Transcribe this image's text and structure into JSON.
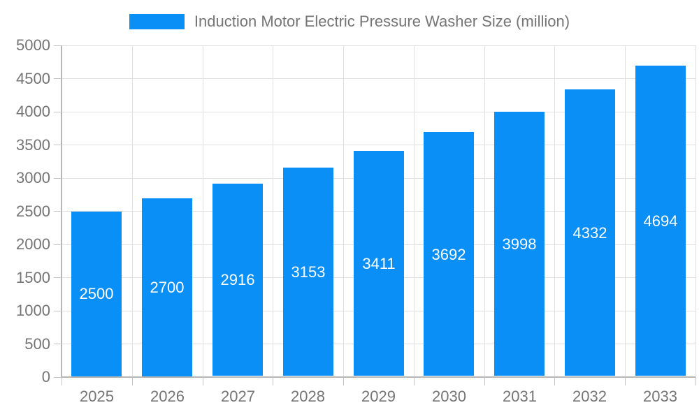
{
  "chart_data": {
    "type": "bar",
    "title": "Induction Motor Electric Pressure Washer Size (million)",
    "categories": [
      "2025",
      "2026",
      "2027",
      "2028",
      "2029",
      "2030",
      "2031",
      "2032",
      "2033"
    ],
    "values": [
      2500,
      2700,
      2916,
      3153,
      3411,
      3692,
      3998,
      4332,
      4694
    ],
    "xlabel": "",
    "ylabel": "",
    "ylim": [
      0,
      5000
    ],
    "ytick_step": 500,
    "grid": true,
    "legend_position": "top-center",
    "legend_entries": [
      "Induction Motor Electric Pressure Washer Size (million)"
    ],
    "bar_color": "#0a8ff7",
    "value_label_color": "#ffffff"
  },
  "style_colors": {
    "background": "#ffffff",
    "axis_line": "#b7b7b7",
    "grid_line": "#e0e0e0",
    "tick_line": "#c4c4c4",
    "axis_text": "#757575",
    "legend_text": "#757575"
  }
}
